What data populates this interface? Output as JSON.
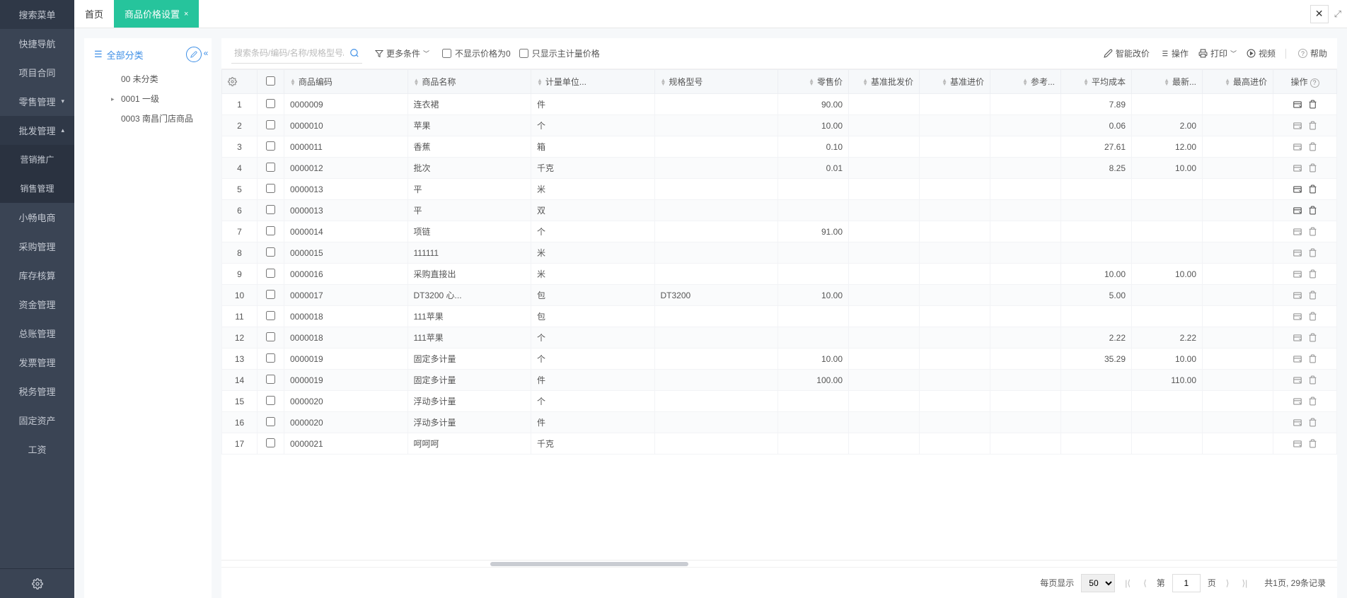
{
  "sidebar": {
    "items": [
      {
        "label": "搜索菜单",
        "caret": null
      },
      {
        "label": "快捷导航",
        "caret": null
      },
      {
        "label": "项目合同",
        "caret": null
      },
      {
        "label": "零售管理",
        "caret": "down"
      },
      {
        "label": "批发管理",
        "caret": "up",
        "active": true
      },
      {
        "label": "营销推广",
        "caret": null,
        "sub": true
      },
      {
        "label": "销售管理",
        "caret": null,
        "sub": true
      },
      {
        "label": "小畅电商",
        "caret": null
      },
      {
        "label": "采购管理",
        "caret": null
      },
      {
        "label": "库存核算",
        "caret": null
      },
      {
        "label": "资金管理",
        "caret": null
      },
      {
        "label": "总账管理",
        "caret": null
      },
      {
        "label": "发票管理",
        "caret": null
      },
      {
        "label": "税务管理",
        "caret": null
      },
      {
        "label": "固定资产",
        "caret": null
      },
      {
        "label": "工资",
        "caret": null
      }
    ]
  },
  "tabs": [
    {
      "label": "首页",
      "active": false,
      "closable": false
    },
    {
      "label": "商品价格设置",
      "active": true,
      "closable": true
    }
  ],
  "tree": {
    "header": "全部分类",
    "nodes": [
      {
        "label": "00 未分类",
        "caret": null
      },
      {
        "label": "0001 一级",
        "caret": "right"
      },
      {
        "label": "0003 南昌门店商品",
        "caret": null
      }
    ]
  },
  "toolbar": {
    "search_placeholder": "搜索条码/编码/名称/规格型号/别名",
    "more": "更多条件",
    "chk_hide_zero": "不显示价格为0",
    "chk_main_unit": "只显示主计量价格",
    "smart": "智能改价",
    "operate": "操作",
    "print": "打印",
    "video": "视频",
    "help": "帮助"
  },
  "columns": [
    "商品编码",
    "商品名称",
    "计量单位...",
    "规格型号",
    "零售价",
    "基准批发价",
    "基准进价",
    "参考...",
    "平均成本",
    "最新...",
    "最高进价",
    "操作"
  ],
  "rows": [
    {
      "idx": 1,
      "code": "0000009",
      "name": "连衣裙",
      "unit": "件",
      "spec": "",
      "retail": "90.00",
      "wholesale": "",
      "purchase": "",
      "ref": "",
      "avg": "7.89",
      "latest": "",
      "max": "",
      "act": true
    },
    {
      "idx": 2,
      "code": "0000010",
      "name": "苹果",
      "unit": "个",
      "spec": "",
      "retail": "10.00",
      "wholesale": "",
      "purchase": "",
      "ref": "",
      "avg": "0.06",
      "latest": "2.00",
      "max": "",
      "act": false
    },
    {
      "idx": 3,
      "code": "0000011",
      "name": "香蕉",
      "unit": "箱",
      "spec": "",
      "retail": "0.10",
      "wholesale": "",
      "purchase": "",
      "ref": "",
      "avg": "27.61",
      "latest": "12.00",
      "max": "",
      "act": false
    },
    {
      "idx": 4,
      "code": "0000012",
      "name": "批次",
      "unit": "千克",
      "spec": "",
      "retail": "0.01",
      "wholesale": "",
      "purchase": "",
      "ref": "",
      "avg": "8.25",
      "latest": "10.00",
      "max": "",
      "act": false
    },
    {
      "idx": 5,
      "code": "0000013",
      "name": "平",
      "unit": "米",
      "spec": "",
      "retail": "",
      "wholesale": "",
      "purchase": "",
      "ref": "",
      "avg": "",
      "latest": "",
      "max": "",
      "act": true
    },
    {
      "idx": 6,
      "code": "0000013",
      "name": "平",
      "unit": "双",
      "spec": "",
      "retail": "",
      "wholesale": "",
      "purchase": "",
      "ref": "",
      "avg": "",
      "latest": "",
      "max": "",
      "act": true
    },
    {
      "idx": 7,
      "code": "0000014",
      "name": "项链",
      "unit": "个",
      "spec": "",
      "retail": "91.00",
      "wholesale": "",
      "purchase": "",
      "ref": "",
      "avg": "",
      "latest": "",
      "max": "",
      "act": false
    },
    {
      "idx": 8,
      "code": "0000015",
      "name": "111111",
      "unit": "米",
      "spec": "",
      "retail": "",
      "wholesale": "",
      "purchase": "",
      "ref": "",
      "avg": "",
      "latest": "",
      "max": "",
      "act": false
    },
    {
      "idx": 9,
      "code": "0000016",
      "name": "采购直接出",
      "unit": "米",
      "spec": "",
      "retail": "",
      "wholesale": "",
      "purchase": "",
      "ref": "",
      "avg": "10.00",
      "latest": "10.00",
      "max": "",
      "act": false
    },
    {
      "idx": 10,
      "code": "0000017",
      "name": "DT3200 心...",
      "unit": "包",
      "spec": "DT3200",
      "retail": "10.00",
      "wholesale": "",
      "purchase": "",
      "ref": "",
      "avg": "5.00",
      "latest": "",
      "max": "",
      "act": false
    },
    {
      "idx": 11,
      "code": "0000018",
      "name": "111苹果",
      "unit": "包",
      "spec": "",
      "retail": "",
      "wholesale": "",
      "purchase": "",
      "ref": "",
      "avg": "",
      "latest": "",
      "max": "",
      "act": false
    },
    {
      "idx": 12,
      "code": "0000018",
      "name": "111苹果",
      "unit": "个",
      "spec": "",
      "retail": "",
      "wholesale": "",
      "purchase": "",
      "ref": "",
      "avg": "2.22",
      "latest": "2.22",
      "max": "",
      "act": false
    },
    {
      "idx": 13,
      "code": "0000019",
      "name": "固定多计量",
      "unit": "个",
      "spec": "",
      "retail": "10.00",
      "wholesale": "",
      "purchase": "",
      "ref": "",
      "avg": "35.29",
      "latest": "10.00",
      "max": "",
      "act": false
    },
    {
      "idx": 14,
      "code": "0000019",
      "name": "固定多计量",
      "unit": "件",
      "spec": "",
      "retail": "100.00",
      "wholesale": "",
      "purchase": "",
      "ref": "",
      "avg": "",
      "latest": "110.00",
      "max": "",
      "act": false
    },
    {
      "idx": 15,
      "code": "0000020",
      "name": "浮动多计量",
      "unit": "个",
      "spec": "",
      "retail": "",
      "wholesale": "",
      "purchase": "",
      "ref": "",
      "avg": "",
      "latest": "",
      "max": "",
      "act": false
    },
    {
      "idx": 16,
      "code": "0000020",
      "name": "浮动多计量",
      "unit": "件",
      "spec": "",
      "retail": "",
      "wholesale": "",
      "purchase": "",
      "ref": "",
      "avg": "",
      "latest": "",
      "max": "",
      "act": false
    },
    {
      "idx": 17,
      "code": "0000021",
      "name": "呵呵呵",
      "unit": "千克",
      "spec": "",
      "retail": "",
      "wholesale": "",
      "purchase": "",
      "ref": "",
      "avg": "",
      "latest": "",
      "max": "",
      "act": false
    }
  ],
  "pager": {
    "per_page_label": "每页显示",
    "per_page_value": "50",
    "page_prefix": "第",
    "page_value": "1",
    "page_suffix": "页",
    "summary": "共1页, 29条记录"
  },
  "colors": {
    "accent": "#26c49c",
    "link": "#3c8ee6",
    "sidebar_bg": "#3a4454"
  }
}
